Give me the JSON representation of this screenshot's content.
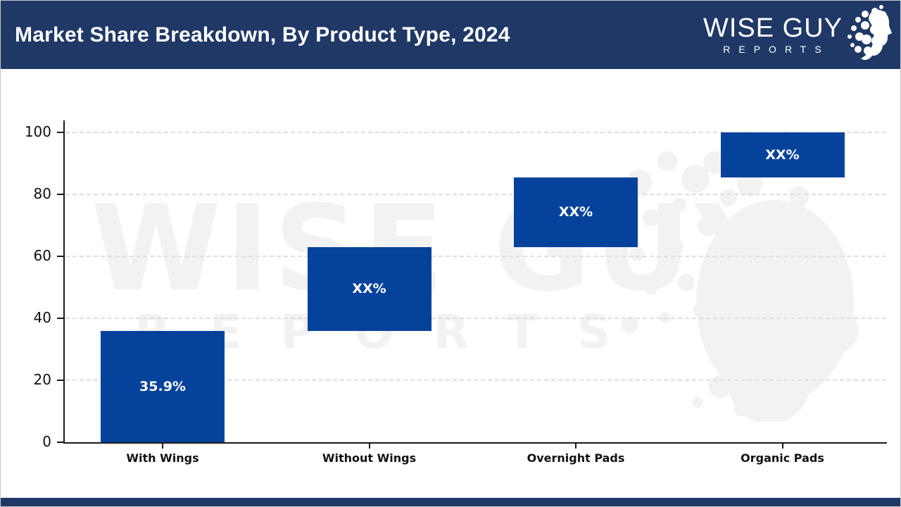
{
  "header": {
    "title": "Market Share Breakdown, By Product Type, 2024",
    "bg_color": "#1f3866",
    "logo": {
      "line1": "WISE GUY",
      "line2": "REPORTS"
    }
  },
  "watermark": {
    "line1": "WISE GUY",
    "line2": "REPORTS"
  },
  "chart_data": {
    "type": "bar",
    "subtype": "floating-segment-waterfall",
    "title": "Market Share Breakdown, By Product Type, 2024",
    "categories": [
      "With Wings",
      "Without Wings",
      "Overnight Pads",
      "Organic Pads"
    ],
    "segments": [
      {
        "category": "With Wings",
        "start": 0,
        "end": 35.9,
        "label": "35.9%"
      },
      {
        "category": "Without Wings",
        "start": 36,
        "end": 63,
        "label": "XX%"
      },
      {
        "category": "Overnight Pads",
        "start": 63,
        "end": 85.5,
        "label": "XX%"
      },
      {
        "category": "Organic Pads",
        "start": 85.5,
        "end": 100,
        "label": "XX%"
      }
    ],
    "yticks": [
      0,
      20,
      40,
      60,
      80,
      100
    ],
    "ylim": [
      0,
      104
    ],
    "xlabel": "",
    "ylabel": "",
    "bar_color": "#05429b",
    "grid": "horizontal-dashed",
    "legend": "none"
  }
}
